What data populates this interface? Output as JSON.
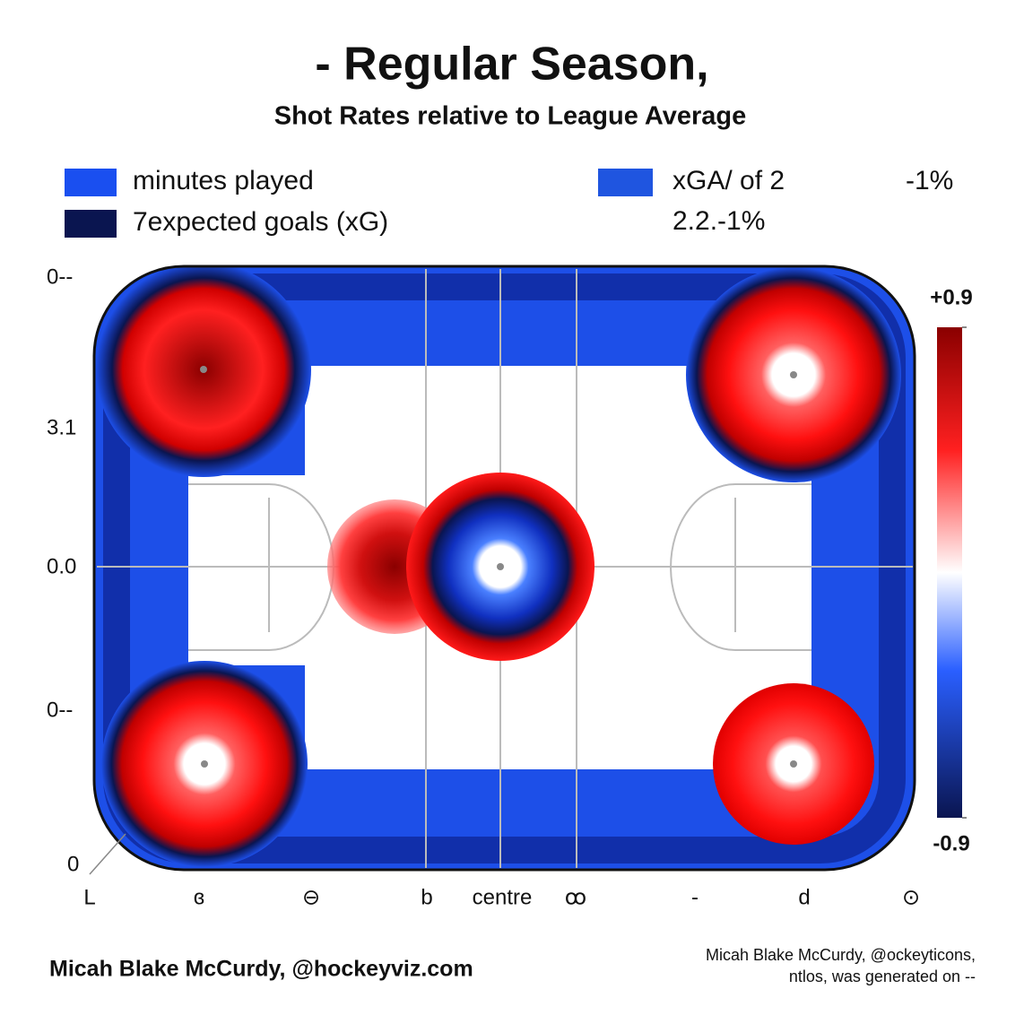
{
  "chart_data": {
    "type": "rink-heatmap",
    "title": "- Regular Season,",
    "subtitle": "Shot Rates relative to League Average",
    "legend": [
      {
        "label": "minutes played",
        "color": "#1a4ff0"
      },
      {
        "label": "7expected goals (xG)",
        "color": "#0a1550"
      },
      {
        "label": "xGA/ of 2",
        "color": "#1f55e0",
        "extra": "-1%",
        "note": "2.2.-1%"
      }
    ],
    "y_labels": [
      "0--",
      "3.1",
      "0.0",
      "0--",
      "0"
    ],
    "x_labels": [
      "L",
      "ɞ",
      "⊖",
      "b",
      "centre",
      "ꝏ",
      "-",
      "d",
      "⊙"
    ],
    "colorbar": {
      "lim": [
        -0.9,
        0.9
      ],
      "ticks": [
        {
          "value": 0.9,
          "label": "+0.9"
        },
        {
          "value": -0.9,
          "label": "-0.9"
        }
      ]
    },
    "footer_left": "Micah Blake McCurdy, @hockeyviz.com",
    "footer_right": [
      "Micah Blake McCurdy, @ockeyticons,",
      "ntlos, was generated on --"
    ]
  }
}
